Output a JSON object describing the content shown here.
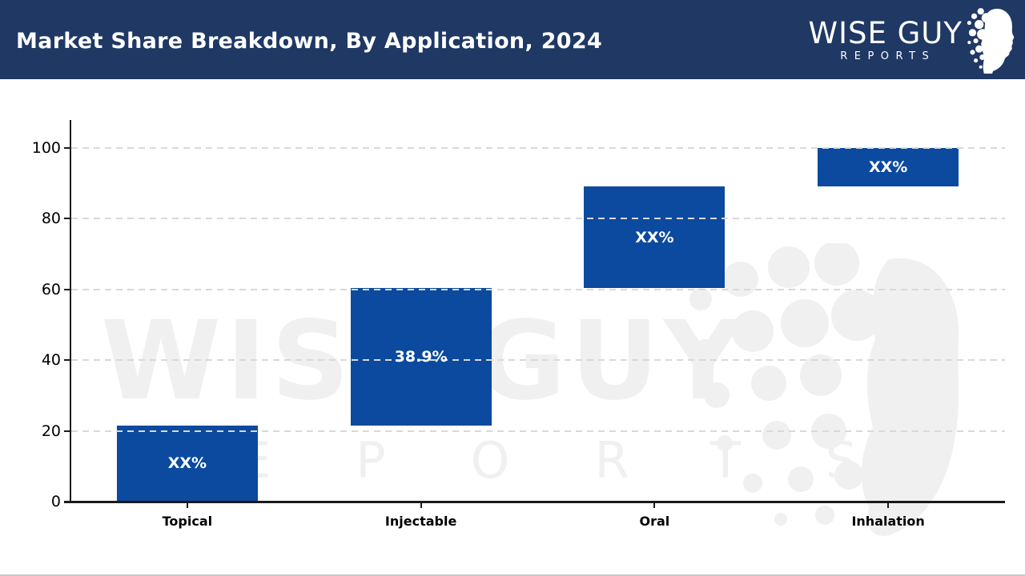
{
  "header": {
    "title": "Market Share Breakdown, By Application, 2024",
    "logo": {
      "line1": "WISE GUY",
      "line2": "REPORTS"
    }
  },
  "watermark": {
    "line1": "WISE GUY",
    "line2": "REPORTS"
  },
  "chart_data": {
    "type": "bar",
    "variant": "waterfall",
    "title": "Market Share Breakdown, By Application, 2024",
    "categories": [
      "Topical",
      "Injectable",
      "Oral",
      "Inhalation"
    ],
    "bars": [
      {
        "category": "Topical",
        "start": 0,
        "value": 21.5,
        "label": "XX%"
      },
      {
        "category": "Injectable",
        "start": 21.5,
        "value": 38.9,
        "label": "38.9%"
      },
      {
        "category": "Oral",
        "start": 60.4,
        "value": 28.7,
        "label": "XX%"
      },
      {
        "category": "Inhalation",
        "start": 89.1,
        "value": 10.9,
        "label": "XX%"
      }
    ],
    "xlabel": "",
    "ylabel": "",
    "ylim": [
      0,
      105
    ],
    "yticks": [
      0,
      20,
      40,
      60,
      80,
      100
    ],
    "grid": "horizontal dashed",
    "legend": null,
    "colors": {
      "bar": "#0b4a9e",
      "bar_label": "#ffffff",
      "grid": "#d9d9d9",
      "axis": "#1a1a1a",
      "header_bg": "#1f3864",
      "watermark": "#f0f0f0"
    }
  }
}
